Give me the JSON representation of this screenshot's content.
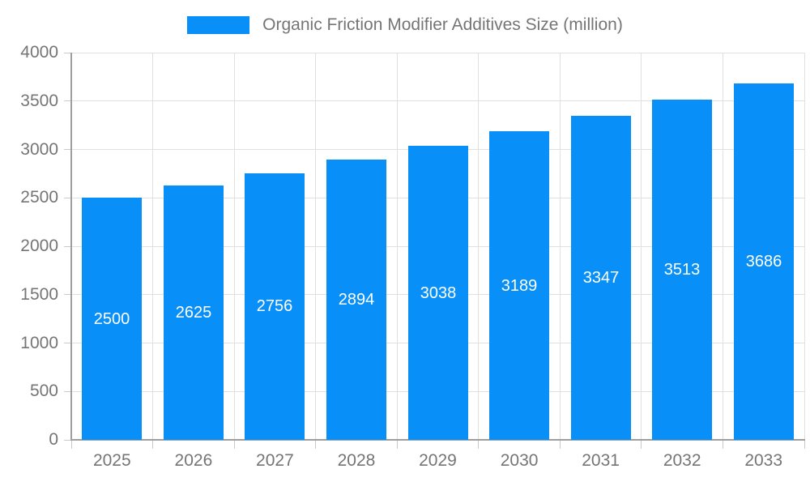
{
  "chart_data": {
    "type": "bar",
    "title": "Organic Friction Modifier Additives Size (million)",
    "categories": [
      "2025",
      "2026",
      "2027",
      "2028",
      "2029",
      "2030",
      "2031",
      "2032",
      "2033"
    ],
    "series": [
      {
        "name": "Organic Friction Modifier Additives Size (million)",
        "values": [
          2500,
          2625,
          2756,
          2894,
          3038,
          3189,
          3347,
          3513,
          3686
        ]
      }
    ],
    "xlabel": "",
    "ylabel": "",
    "ylim": [
      0,
      4000
    ],
    "ytick_step": 500,
    "yticks": [
      0,
      500,
      1000,
      1500,
      2000,
      2500,
      3000,
      3500,
      4000
    ],
    "grid": true,
    "legend_position": "top-center",
    "bar_labels_inside": true,
    "colors": {
      "bar": "#0990f8",
      "bar_label": "#ffffff",
      "axis_text": "#757575",
      "gridline": "#e0e0e0",
      "tick": "#c9c9c9",
      "axis_line": "#9e9e9e"
    }
  }
}
